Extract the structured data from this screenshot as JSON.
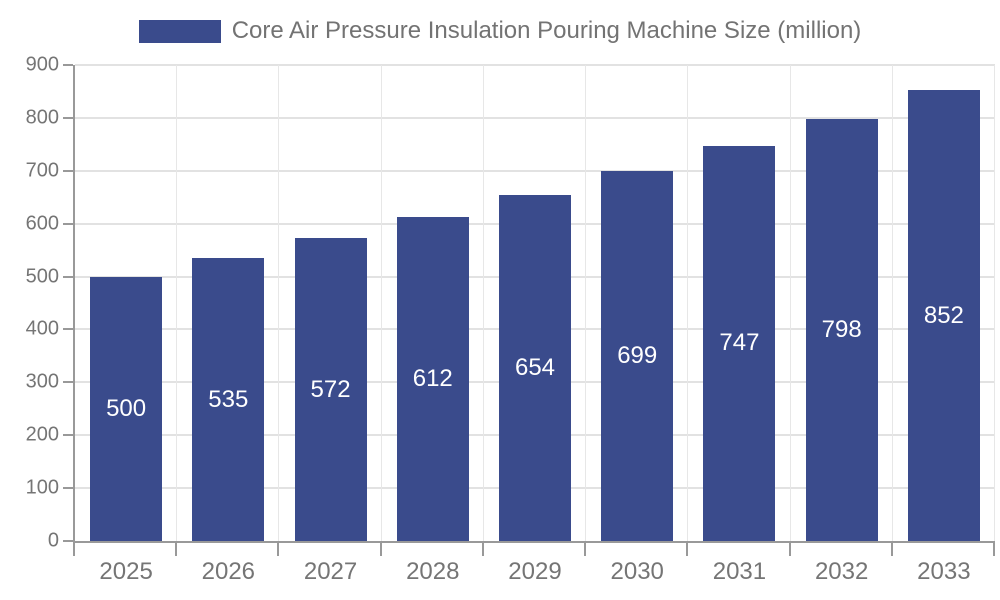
{
  "chart_data": {
    "type": "bar",
    "title": "Core Air Pressure Insulation Pouring Machine Size (million)",
    "categories": [
      "2025",
      "2026",
      "2027",
      "2028",
      "2029",
      "2030",
      "2031",
      "2032",
      "2033"
    ],
    "values": [
      500,
      535,
      572,
      612,
      654,
      699,
      747,
      798,
      852
    ],
    "xlabel": "",
    "ylabel": "",
    "ylim": [
      0,
      900
    ],
    "ytick_step": 100,
    "yticks": [
      "0",
      "100",
      "200",
      "300",
      "400",
      "500",
      "600",
      "700",
      "800",
      "900"
    ],
    "grid": true,
    "legend_position": "top",
    "bar_color": "#3A4B8C",
    "value_label_color": "#FFFFFF"
  },
  "colors": {
    "background": "#FFFFFF",
    "axis_line": "#999999",
    "grid_line_h": "#E2E2E2",
    "grid_line_v": "#E7E7E7",
    "axis_text": "#757575",
    "legend_text": "#737373"
  }
}
